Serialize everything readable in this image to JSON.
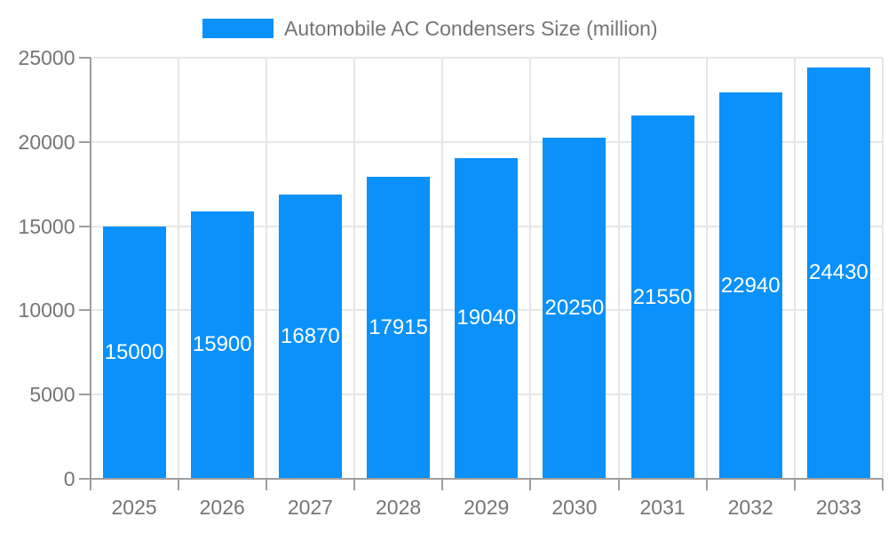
{
  "chart_data": {
    "type": "bar",
    "title": "Automobile AC Condensers Size (million)",
    "categories": [
      "2025",
      "2026",
      "2027",
      "2028",
      "2029",
      "2030",
      "2031",
      "2032",
      "2033"
    ],
    "values": [
      15000,
      15900,
      16870,
      17915,
      19040,
      20250,
      21550,
      22940,
      24430
    ],
    "xlabel": "",
    "ylabel": "",
    "ylim": [
      0,
      25000
    ],
    "ytick_step": 5000,
    "ytick_labels": [
      "0",
      "5000",
      "10000",
      "15000",
      "20000",
      "25000"
    ],
    "legend_position": "top-center",
    "grid": true,
    "colors": {
      "bar": "#0a91fb",
      "bar_value_text": "#ffffff",
      "axis_text": "#757575",
      "legend_text": "#757575",
      "grid_line": "#e6e6e6",
      "axis_line": "#9e9e9e",
      "background": "#ffffff"
    }
  }
}
